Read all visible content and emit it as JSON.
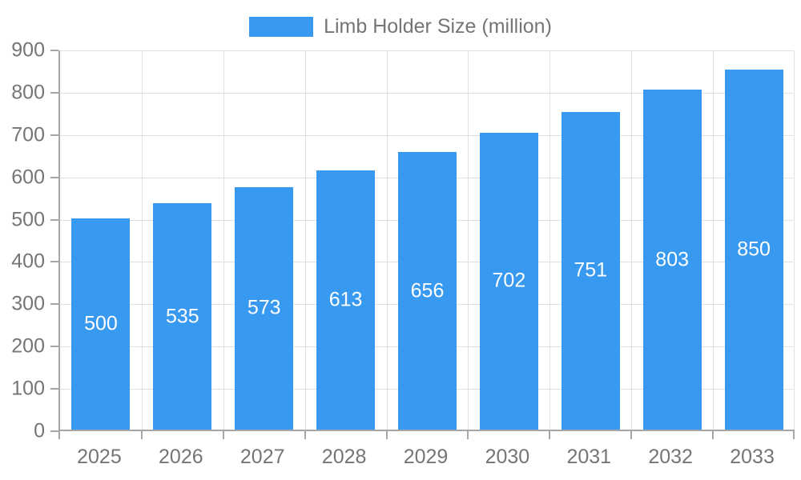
{
  "legend": {
    "label": "Limb Holder Size (million)"
  },
  "colors": {
    "bar": "#3899f0",
    "grid": "#e0e0e0",
    "axis": "#a6a6a6",
    "tick_label": "#757575",
    "bar_label": "#ffffff",
    "background": "#ffffff"
  },
  "chart_data": {
    "type": "bar",
    "title": "",
    "series_name": "Limb Holder Size (million)",
    "categories": [
      "2025",
      "2026",
      "2027",
      "2028",
      "2029",
      "2030",
      "2031",
      "2032",
      "2033"
    ],
    "values": [
      500,
      535,
      573,
      613,
      656,
      702,
      751,
      803,
      850
    ],
    "xlabel": "",
    "ylabel": "",
    "ylim": [
      0,
      900
    ],
    "ytick_step": 100,
    "yticks": [
      0,
      100,
      200,
      300,
      400,
      500,
      600,
      700,
      800,
      900
    ],
    "grid": true,
    "legend_position": "top",
    "bar_value_labels": true
  }
}
